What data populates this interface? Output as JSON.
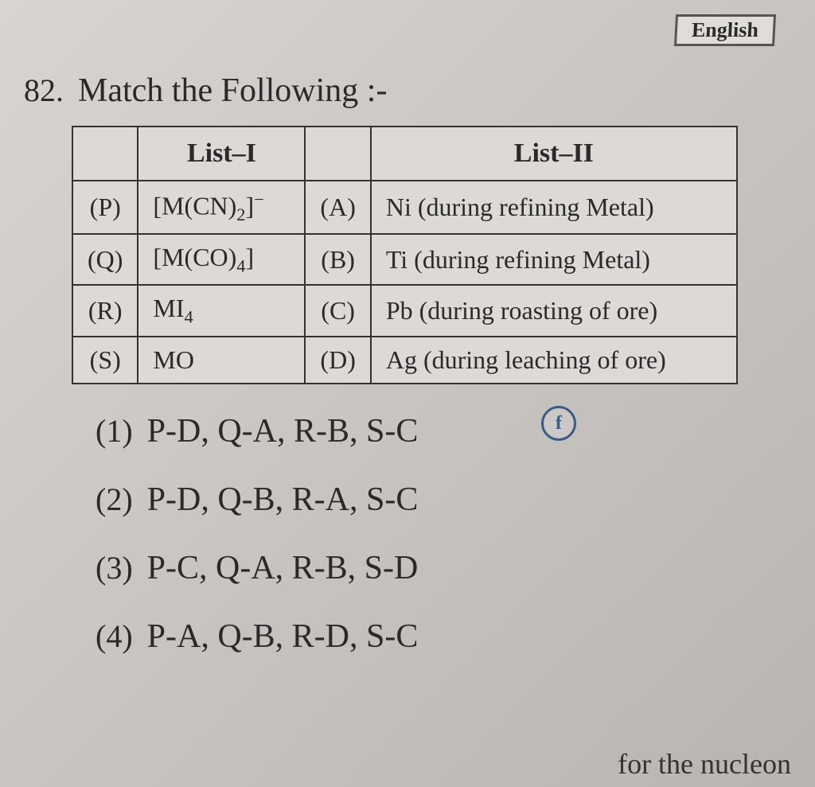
{
  "language_badge": "English",
  "question": {
    "number": "82.",
    "title": "Match the Following :-"
  },
  "table": {
    "headers": {
      "list1": "List–I",
      "list2": "List–II"
    },
    "rows": [
      {
        "p_label": "(P)",
        "p_content_html": "[M(CN)₂]⁻",
        "a_label": "(A)",
        "a_content": "Ni (during refining Metal)"
      },
      {
        "p_label": "(Q)",
        "p_content_html": "[M(CO)₄]",
        "a_label": "(B)",
        "a_content": "Ti (during refining Metal)"
      },
      {
        "p_label": "(R)",
        "p_content_html": "MI₄",
        "a_label": "(C)",
        "a_content": "Pb (during roasting of ore)"
      },
      {
        "p_label": "(S)",
        "p_content_html": "MO",
        "a_label": "(D)",
        "a_content": "Ag (during leaching of ore)"
      }
    ]
  },
  "options": [
    {
      "label": "(1)",
      "text": "P-D, Q-A, R-B, S-C"
    },
    {
      "label": "(2)",
      "text": "P-D, Q-B, R-A, S-C"
    },
    {
      "label": "(3)",
      "text": "P-C, Q-A, R-B, S-D"
    },
    {
      "label": "(4)",
      "text": "P-A, Q-B, R-D, S-C"
    }
  ],
  "circle_mark": "f",
  "bottom_fragment": "for the nucleon",
  "colors": {
    "background_light": "#d8d4d0",
    "background_dark": "#b8b4b0",
    "text": "#2a2a2a",
    "border": "#333333",
    "circle": "#3a5a8a"
  },
  "typography": {
    "question_title_fontsize": 42,
    "table_fontsize": 32,
    "option_fontsize": 42,
    "font_family": "Georgia, Times New Roman, serif"
  }
}
